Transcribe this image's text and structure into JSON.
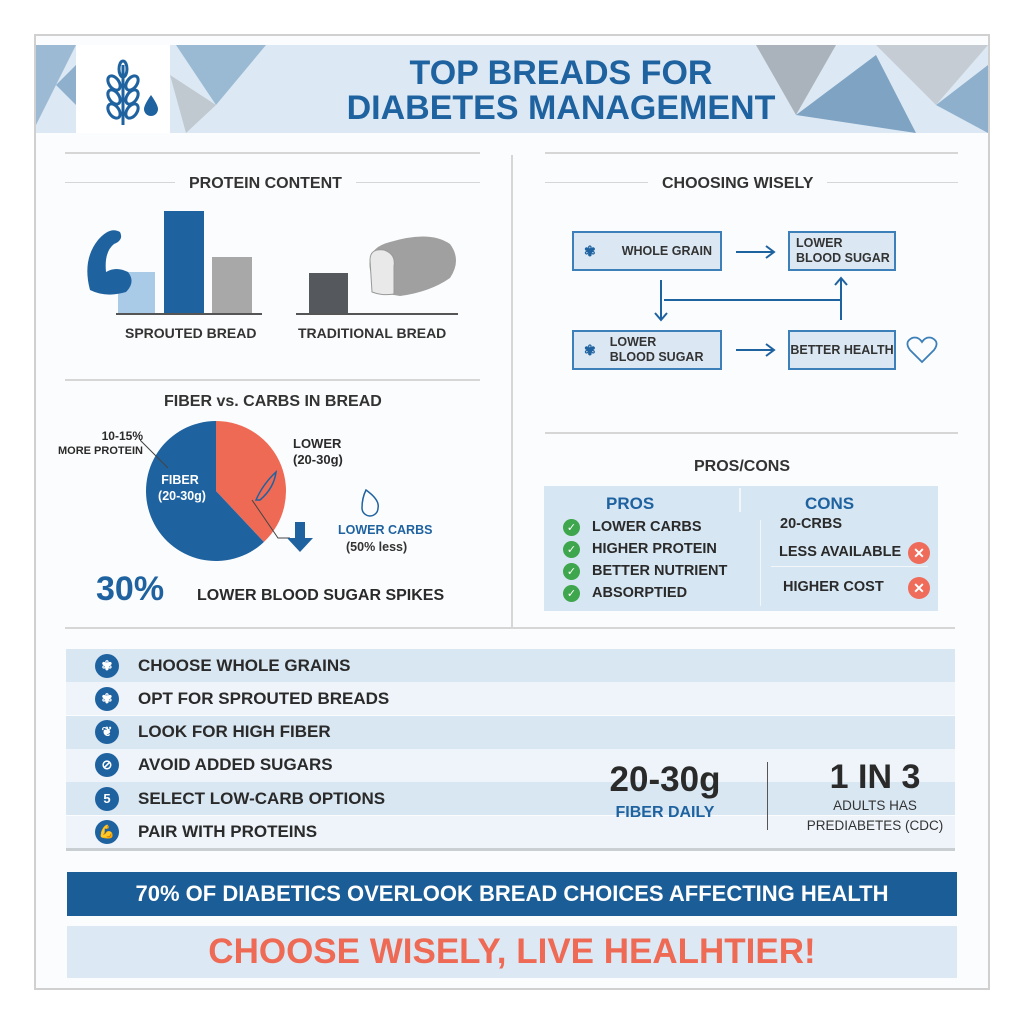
{
  "header": {
    "title_line1": "TOP BREADS FOR",
    "title_line2": "DIABETES MANAGEMENT",
    "logo_icon": "wheat-drop-icon"
  },
  "protein": {
    "title": "PROTEIN CONTENT",
    "groups": [
      {
        "label": "SPROUTED BREAD",
        "icon": "flexed-bicep-icon",
        "bars": [
          {
            "relative": 0.42,
            "color": "#a9cbe8"
          },
          {
            "relative": 1.0,
            "color": "#1f62a0"
          },
          {
            "relative": 0.56,
            "color": "#a8a8a8"
          }
        ]
      },
      {
        "label": "TRADITIONAL BREAD",
        "icon": "bread-loaf-icon",
        "bars": [
          {
            "relative": 0.4,
            "color": "#55585d"
          }
        ]
      }
    ]
  },
  "fiber": {
    "title": "FIBER vs. CARBS IN BREAD",
    "chart_data": {
      "type": "pie",
      "slices": [
        {
          "label": "FIBER (20-30g)",
          "value": 62,
          "color": "#1f62a0"
        },
        {
          "label": "LOWER (20-30g)",
          "value": 38,
          "color": "#ee6a55"
        }
      ]
    },
    "fiber_label_1": "FIBER",
    "fiber_label_2": "(20-30g)",
    "protein_note_1": "10-15%",
    "protein_note_2": "MORE PROTEIN",
    "lower_1": "LOWER",
    "lower_2": "(20-30g)",
    "carbs_1": "LOWER CARBS",
    "carbs_2": "(50% less)",
    "stat_value": "30%",
    "stat_label": "LOWER BLOOD SUGAR SPIKES"
  },
  "choosing": {
    "title": "CHOOSING WISELY",
    "boxes": [
      {
        "line1": "WHOLE GRAIN",
        "line2": ""
      },
      {
        "line1": "LOWER",
        "line2": "BLOOD SUGAR"
      },
      {
        "line1": "LOWER",
        "line2": "BLOOD SUGAR"
      },
      {
        "line1": "BETTER HEALTH",
        "line2": ""
      }
    ],
    "accent": "#3d7fb8"
  },
  "proscons": {
    "title": "PROS/CONS",
    "pros_header": "PROS",
    "cons_header": "CONS",
    "pros": [
      "LOWER CARBS",
      "HIGHER PROTEIN",
      "BETTER NUTRIENT",
      "ABSORPTIED"
    ],
    "cons": [
      "20-CRBS",
      "LESS AVAILABLE",
      "HIGHER COST"
    ]
  },
  "tips": [
    {
      "icon": "wheat-icon",
      "glyph": "✾",
      "label": "CHOOSE WHOLE GRAINS"
    },
    {
      "icon": "wheat-icon",
      "glyph": "✾",
      "label": "OPT FOR SPROUTED BREADS"
    },
    {
      "icon": "leaf-icon",
      "glyph": "❦",
      "label": "LOOK FOR HIGH FIBER"
    },
    {
      "icon": "no-sugar-icon",
      "glyph": "⊘",
      "label": "AVOID ADDED SUGARS"
    },
    {
      "icon": "number-5-icon",
      "glyph": "5",
      "label": "SELECT LOW-CARB OPTIONS"
    },
    {
      "icon": "bicep-icon",
      "glyph": "💪",
      "label": "PAIR WITH PROTEINS"
    }
  ],
  "stats": {
    "fiber_value": "20-30g",
    "fiber_label": "FIBER DAILY",
    "ratio_value": "1 IN 3",
    "ratio_label_1": "ADULTS HAS",
    "ratio_label_2": "PREDIABETES (CDC)"
  },
  "banner": "70% OF DIABETICS OVERLOOK BREAD CHOICES AFFECTING HEALTH",
  "footer": "CHOOSE WISELY, LIVE HEALHTIER!",
  "colors": {
    "brand_blue": "#1f62a0",
    "coral": "#ee6a55",
    "light_blue": "#dce9f4",
    "green": "#3ea64c"
  }
}
